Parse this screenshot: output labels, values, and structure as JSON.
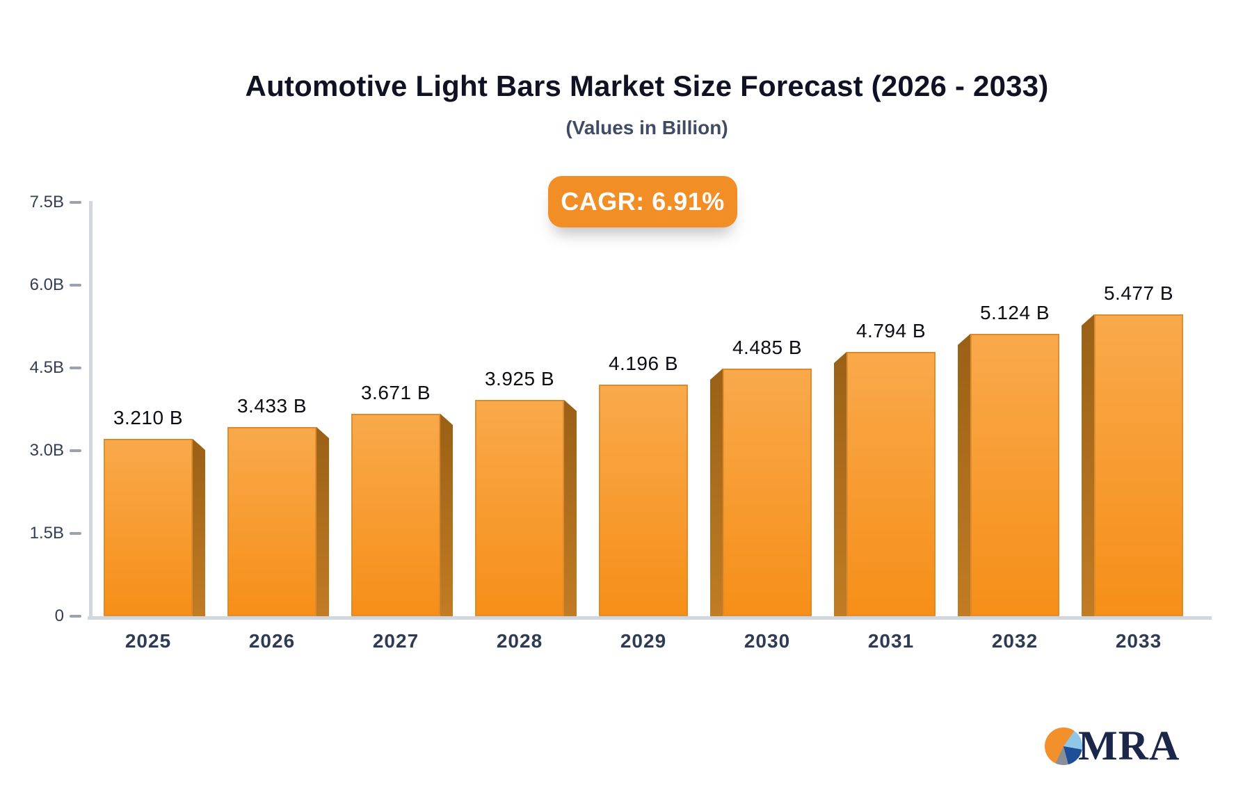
{
  "header": {
    "title": "Automotive Light Bars Market Size Forecast (2026 - 2033)",
    "subtitle": "(Values in Billion)",
    "cagr_label": "CAGR: 6.91%"
  },
  "chart_data": {
    "type": "bar",
    "title": "Automotive Light Bars Market Size Forecast (2026 - 2033)",
    "subtitle": "(Values in Billion)",
    "cagr": "6.91%",
    "unit": "Billion",
    "categories": [
      "2025",
      "2026",
      "2027",
      "2028",
      "2029",
      "2030",
      "2031",
      "2032",
      "2033"
    ],
    "values": [
      3.21,
      3.433,
      3.671,
      3.925,
      4.196,
      4.485,
      4.794,
      5.124,
      5.477
    ],
    "bar_labels": [
      "3.210 B",
      "3.433 B",
      "3.671 B",
      "3.925 B",
      "4.196 B",
      "4.485 B",
      "4.794 B",
      "5.124 B",
      "5.477 B"
    ],
    "ylim": [
      0,
      7.5
    ],
    "yticks": [
      {
        "value": 7.5,
        "label": "7.5B"
      },
      {
        "value": 6.0,
        "label": "6.0B"
      },
      {
        "value": 4.5,
        "label": "4.5B"
      },
      {
        "value": 3.0,
        "label": "3.0B"
      },
      {
        "value": 1.5,
        "label": "1.5B"
      },
      {
        "value": 0,
        "label": "0"
      }
    ],
    "grid": false,
    "legend": false,
    "style": "3d-bars, lighter side facing plot center, flat center bar"
  },
  "colors": {
    "bar_face_top": "#f9a94b",
    "bar_face_bottom": "#f68f18",
    "bar_side": "#a96a1a",
    "badge_bg": "#f28e26",
    "badge_text": "#ffffff",
    "axis_line": "#d2d7dd",
    "tick_text": "#333e52",
    "title_text": "#101224",
    "subtitle_text": "#3f4c63",
    "label_text": "#0c0e14",
    "logo_navy": "#1b2749",
    "logo_orange": "#f2902c",
    "logo_lightblue": "#8ec7e8",
    "logo_blue": "#1f4e96",
    "logo_gray": "#8a8f98"
  },
  "logo": {
    "text": "MRA"
  }
}
